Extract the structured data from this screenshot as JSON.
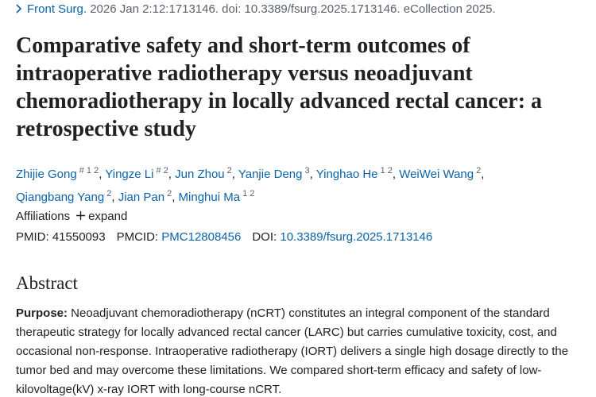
{
  "citation": {
    "journal": "Front Surg.",
    "details": " 2026 Jan 2:12:1713146. doi: 10.3389/fsurg.2025.1713146. eCollection 2025."
  },
  "title": "Comparative safety and short-term outcomes of intraoperative radiotherapy versus neoadjuvant chemoradiotherapy in locally advanced rectal cancer: a retrospective study",
  "authors": {
    "separator": ",",
    "list": [
      {
        "name": "Zhijie Gong",
        "marks": [
          "#",
          "1",
          "2"
        ]
      },
      {
        "name": "Yingze Li",
        "marks": [
          "#",
          "2"
        ]
      },
      {
        "name": "Jun Zhou",
        "marks": [
          "2"
        ]
      },
      {
        "name": "Yanjie Deng",
        "marks": [
          "3"
        ]
      },
      {
        "name": "Yinghao He",
        "marks": [
          "1",
          "2"
        ]
      },
      {
        "name": "WeiWei Wang",
        "marks": [
          "2"
        ]
      },
      {
        "name": "Qiangbang Yang",
        "marks": [
          "2"
        ]
      },
      {
        "name": "Jian Pan",
        "marks": [
          "2"
        ]
      },
      {
        "name": "Minghui Ma",
        "marks": [
          "1",
          "2"
        ]
      }
    ]
  },
  "affiliations": {
    "label": "Affiliations",
    "toggle": "expand"
  },
  "identifiers": [
    {
      "label": "PMID:",
      "value": "41550093"
    },
    {
      "label": "PMCID:",
      "value": "PMC12808456"
    },
    {
      "label": "DOI:",
      "value": "10.3389/fsurg.2025.1713146"
    }
  ],
  "abstract": {
    "heading": "Abstract",
    "purpose_label": "Purpose:",
    "purpose_text": " Neoadjuvant chemoradiotherapy (nCRT) constitutes an integral component of the standard therapeutic strategy for locally advanced rectal cancer (LARC) but carries cumulative toxicity, cost, and occasional non-response. Intraoperative radiotherapy (IORT) delivers a single high dosage directly to the tumor bed and may overcome these limitations. We compared short-term efficacy and safety of low-kilovoltage(kV) x-ray IORT with long-course nCRT."
  }
}
